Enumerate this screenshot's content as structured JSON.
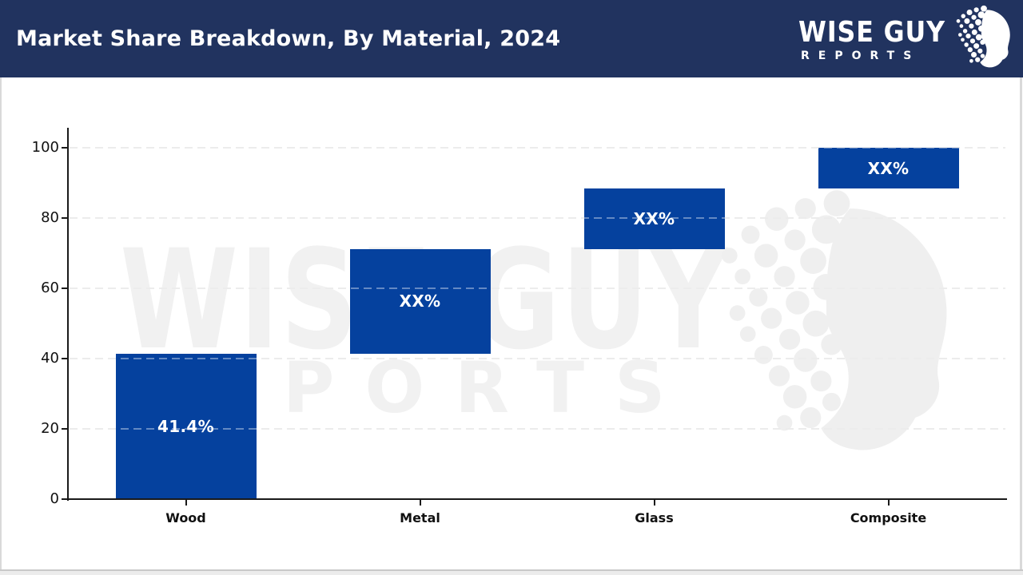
{
  "header": {
    "title": "Market Share Breakdown, By Material, 2024",
    "brand_line1": "WISE GUY",
    "brand_line2": "REPORTS"
  },
  "watermark": {
    "line1": "WISE GUY",
    "line2": "REPORTS"
  },
  "chart_data": {
    "type": "bar",
    "subtype": "waterfall",
    "title": "Market Share Breakdown, By Material, 2024",
    "categories": [
      "Wood",
      "Metal",
      "Glass",
      "Composite"
    ],
    "segments": [
      {
        "category": "Wood",
        "start": 0,
        "end": 41.4,
        "label": "41.4%"
      },
      {
        "category": "Metal",
        "start": 41.4,
        "end": 71.2,
        "label": "XX%"
      },
      {
        "category": "Glass",
        "start": 71.2,
        "end": 88.4,
        "label": "XX%"
      },
      {
        "category": "Composite",
        "start": 88.4,
        "end": 100,
        "label": "XX%"
      }
    ],
    "yticks": [
      0,
      20,
      40,
      60,
      80,
      100
    ],
    "ylim": [
      0,
      105.7
    ],
    "xlabel": "",
    "ylabel": "",
    "grid": true,
    "grid_style": "dashed",
    "legend": "none",
    "colors": {
      "bar": "#05419e",
      "bar_label": "#ffffff",
      "axis": "#1a1a1a",
      "grid": "#e0e0e0",
      "tick_label": "#111111"
    }
  },
  "colors": {
    "header_bg": "#21335f",
    "watermark_text": "#f1f1f1",
    "watermark_face": "#efefef",
    "page_border": "#d9d9d9"
  }
}
